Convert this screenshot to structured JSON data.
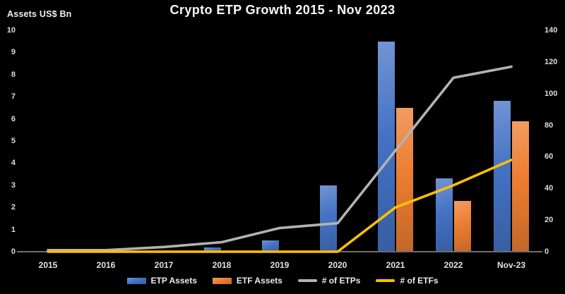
{
  "header": {
    "title": "Crypto ETP Growth 2015 - Nov 2023",
    "left_axis_note": "Assets US$ Bn"
  },
  "chart_data": {
    "type": "combo-bar-line",
    "title": "Crypto ETP Growth 2015 - Nov 2023",
    "background": "#000000",
    "grid": false,
    "legend_position": "bottom",
    "categories": [
      "2015",
      "2016",
      "2017",
      "2018",
      "2019",
      "2020",
      "2021",
      "2022",
      "Nov-23"
    ],
    "series": [
      {
        "name": "ETP Assets",
        "type": "bar",
        "axis": "left",
        "color": "#4472C4",
        "values": [
          0,
          0,
          0,
          0.2,
          0.5,
          3.0,
          9.5,
          3.3,
          6.8
        ]
      },
      {
        "name": "ETF Assets",
        "type": "bar",
        "axis": "left",
        "color": "#ED7D31",
        "values": [
          0,
          0,
          0,
          0,
          0,
          0,
          6.5,
          2.3,
          5.9
        ]
      },
      {
        "name": "# of ETPs",
        "type": "line",
        "axis": "right",
        "color": "#B3B3B3",
        "values": [
          1,
          1,
          3,
          6,
          15,
          18,
          64,
          110,
          117
        ]
      },
      {
        "name": "# of ETFs",
        "type": "line",
        "axis": "right",
        "color": "#FFC000",
        "values": [
          0,
          0,
          0,
          0,
          0,
          0,
          28,
          42,
          58
        ]
      }
    ],
    "left_axis": {
      "label": "Assets US$ Bn",
      "min": 0,
      "max": 10,
      "tick_step": 1,
      "tick_labels": [
        "0",
        "1",
        "2",
        "3",
        "4",
        "5",
        "6",
        "7",
        "8",
        "9",
        "10"
      ]
    },
    "right_axis": {
      "label": "",
      "min": 0,
      "max": 140,
      "tick_step": 20,
      "tick_labels": [
        "0",
        "20",
        "40",
        "60",
        "80",
        "100",
        "120",
        "140"
      ]
    }
  }
}
